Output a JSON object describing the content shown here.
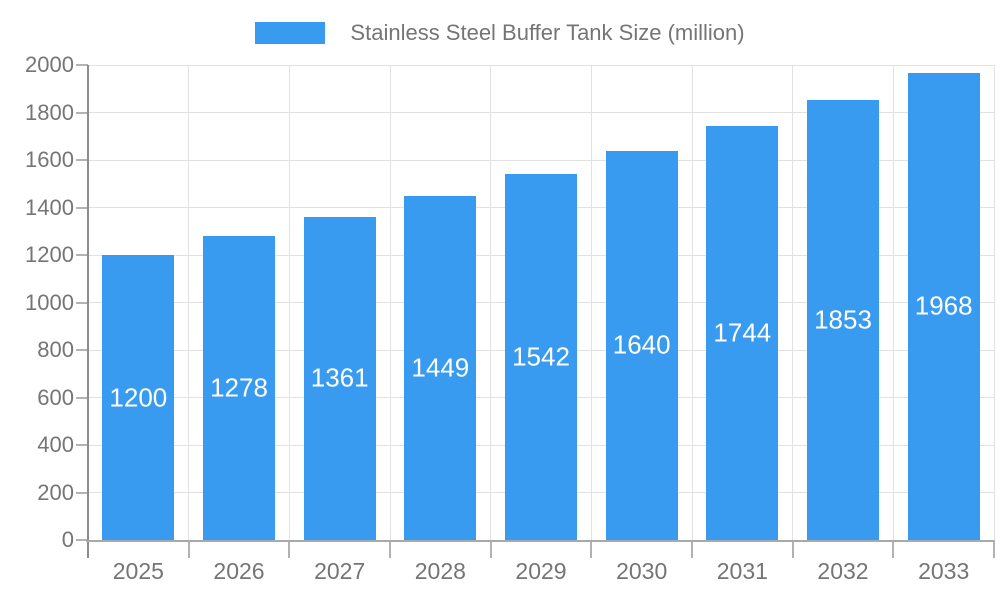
{
  "chart_data": {
    "type": "bar",
    "title": "Stainless Steel Buffer Tank Size (million)",
    "legend": [
      "Stainless Steel Buffer Tank Size (million)"
    ],
    "legend_position": "top",
    "categories": [
      "2025",
      "2026",
      "2027",
      "2028",
      "2029",
      "2030",
      "2031",
      "2032",
      "2033"
    ],
    "values": [
      1200,
      1278,
      1361,
      1449,
      1542,
      1640,
      1744,
      1853,
      1968
    ],
    "xlabel": "",
    "ylabel": "",
    "ylim": [
      0,
      2000
    ],
    "ytick_step": 200,
    "ytick_labels": [
      "0",
      "200",
      "400",
      "600",
      "800",
      "1000",
      "1200",
      "1400",
      "1600",
      "1800",
      "2000"
    ],
    "grid": true,
    "value_labels_visible": true,
    "colors": {
      "bar": "#399BF0",
      "value_text": "#ffffff",
      "axis_text": "#757575",
      "gridline": "#e2e2e2",
      "tick": "#b3b3b3",
      "y_axis_line": "#8c8c8c",
      "x_axis_line": "#a9a9a9",
      "background": "#ffffff"
    }
  }
}
